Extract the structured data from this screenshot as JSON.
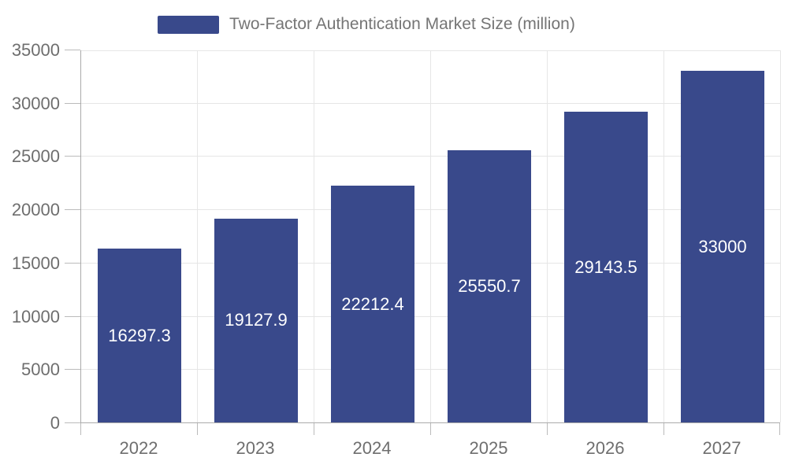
{
  "chart_data": {
    "type": "bar",
    "title": "Two-Factor Authentication Market Size (million)",
    "legend": "Two-Factor Authentication Market Size (million)",
    "legend_position": "top",
    "categories": [
      "2022",
      "2023",
      "2024",
      "2025",
      "2026",
      "2027"
    ],
    "values": [
      16297.3,
      19127.9,
      22212.4,
      25550.7,
      29143.5,
      33000
    ],
    "value_labels": [
      "16297.3",
      "19127.9",
      "22212.4",
      "25550.7",
      "29143.5",
      "33000"
    ],
    "xlabel": "",
    "ylabel": "",
    "ylim": [
      0,
      35000
    ],
    "yticks": [
      0,
      5000,
      10000,
      15000,
      20000,
      25000,
      30000,
      35000
    ],
    "grid": true,
    "colors": {
      "bar": "#39498B",
      "value_label": "#FFFFFF",
      "grid_line": "#E6E6E6",
      "axis_line": "#AAAAAA",
      "tick": "#BBBBBB",
      "axis_text": "#6E6E6E",
      "legend_text": "#757575"
    }
  }
}
